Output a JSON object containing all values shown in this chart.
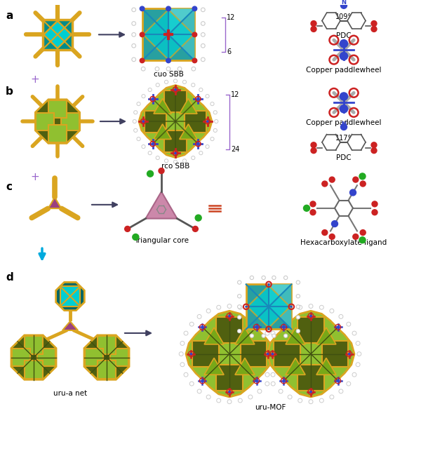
{
  "panel_labels": [
    "a",
    "b",
    "c",
    "d"
  ],
  "panel_label_fontsize": 11,
  "panel_label_color": "black",
  "panel_label_weight": "bold",
  "arrow_color": "#404060",
  "plus_color": "#9966CC",
  "down_arrow_color": "#00AADD",
  "bracket_color": "#9966CC",
  "cuo_sbb_label": "cuo SBB",
  "rco_sbb_label": "rco SBB",
  "triangular_core_label": "Triangular core",
  "hexacarboxylate_label": "Hexacarboxylate ligand",
  "uru_a_net_label": "uru-a net",
  "uru_mof_label": "uru-MOF",
  "pdc1_label": "PDC",
  "pdc1_angle": "109°",
  "pdc2_label": "PDC",
  "pdc2_angle": "117°",
  "copper_pw_label": "Copper paddlewheel",
  "bracket_a_values": [
    "12",
    "6"
  ],
  "bracket_b_values": [
    "12",
    "24"
  ],
  "gold_color": "#DAA520",
  "teal_color": "#008B8B",
  "cyan_color": "#00CED1",
  "teal_dark": "#006666",
  "lime_color": "#90C030",
  "lime_mid": "#78A818",
  "dark_lime_color": "#506010",
  "dark_lime2": "#405010",
  "pink_purple": "#9B4080",
  "pink_light": "#CC88AA",
  "red_color": "#CC2222",
  "blue_color": "#3344CC",
  "green_color": "#22AA22",
  "gray_color": "#888888",
  "light_gray": "#CCCCCC",
  "equiv_color": "#CC4422",
  "white": "#FFFFFF",
  "bg_color": "#FFFFFF"
}
